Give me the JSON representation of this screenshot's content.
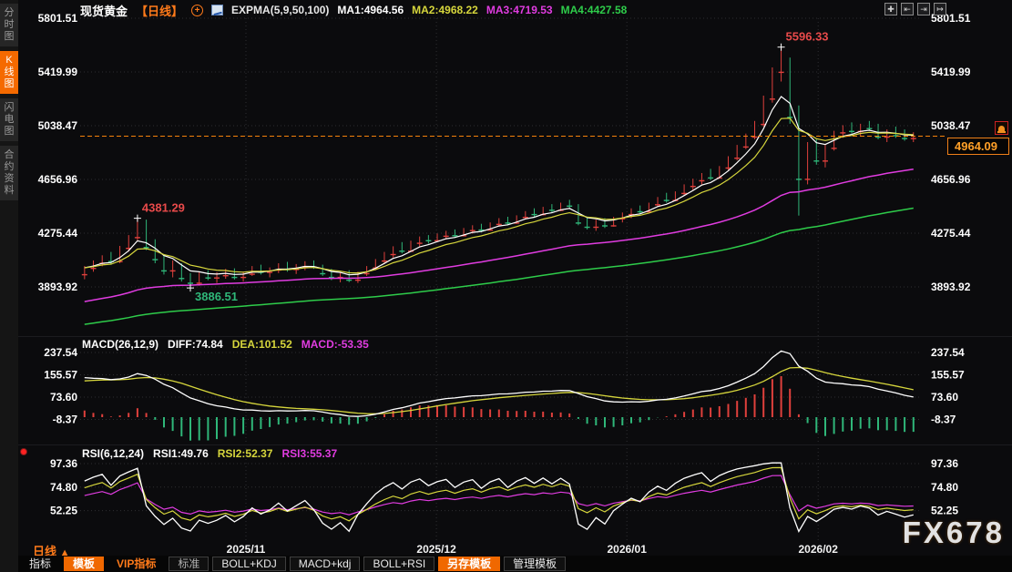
{
  "header": {
    "symbol": "现货黄金",
    "period_tag": "【日线】",
    "indicator": "EXPMA(5,9,50,100)",
    "ma_values": [
      {
        "label": "MA1:4964.56",
        "color": "#ffffff"
      },
      {
        "label": "MA2:4968.22",
        "color": "#d6d63c"
      },
      {
        "label": "MA3:4719.53",
        "color": "#e03ce0"
      },
      {
        "label": "MA4:4427.58",
        "color": "#2ecc4a"
      }
    ],
    "toolbar_icons": [
      "crosshair-icon",
      "compress-candles-icon",
      "expand-candles-icon",
      "shift-right-icon"
    ]
  },
  "sidebar": {
    "tabs": [
      {
        "name": "tab-time-chart",
        "label": "分时图",
        "active": false
      },
      {
        "name": "tab-kline-chart",
        "label": "K线图",
        "active": true
      },
      {
        "name": "tab-lightning-chart",
        "label": "闪电图",
        "active": false
      },
      {
        "name": "tab-contract-info",
        "label": "合约资料",
        "active": false
      }
    ]
  },
  "macd_header": {
    "title": "MACD(26,12,9)",
    "diff": "DIFF:74.84",
    "dea": "DEA:101.52",
    "macd": "MACD:-53.35"
  },
  "rsi_header": {
    "title": "RSI(6,12,24)",
    "rsi1": "RSI1:49.76",
    "rsi2": "RSI2:52.37",
    "rsi3": "RSI3:55.37"
  },
  "price_box": {
    "value": "4964.09"
  },
  "period_row": {
    "period": "日线",
    "arrow": "▲"
  },
  "bottom_toolbar": [
    {
      "name": "indicator-button",
      "label": "指标",
      "style": "bare"
    },
    {
      "name": "template-button",
      "label": "模板",
      "style": "orange-bg"
    },
    {
      "name": "vip-indicator-button",
      "label": "VIP指标",
      "style": "orange-text"
    },
    {
      "name": "standard-button",
      "label": "标准",
      "style": "dim"
    },
    {
      "name": "boll-kdj-button",
      "label": "BOLL+KDJ",
      "style": "plain"
    },
    {
      "name": "macd-kdj-button",
      "label": "MACD+kdj",
      "style": "plain"
    },
    {
      "name": "boll-rsi-button",
      "label": "BOLL+RSI",
      "style": "plain"
    },
    {
      "name": "save-template-button",
      "label": "另存模板",
      "style": "orange-bg"
    },
    {
      "name": "manage-template-button",
      "label": "管理模板",
      "style": "plain"
    }
  ],
  "watermark": "FX678",
  "chart_data": {
    "type": "candlestick",
    "title": "现货黄金 日线",
    "price_axis_ticks": [
      5801.51,
      5419.99,
      5038.47,
      4656.96,
      4275.44,
      3893.92
    ],
    "macd_axis_ticks": [
      237.54,
      155.57,
      73.6,
      -8.37
    ],
    "rsi_axis_ticks": [
      97.36,
      74.8,
      52.25
    ],
    "x_axis_labels": [
      {
        "label": "2025/11",
        "bar": 18.8
      },
      {
        "label": "2025/12",
        "bar": 40.4
      },
      {
        "label": "2026/01",
        "bar": 62.0
      },
      {
        "label": "2026/02",
        "bar": 83.7
      }
    ],
    "current_price": 4964.09,
    "annotations": [
      {
        "text": "4381.29",
        "color": "#e84a4a",
        "bar": 6,
        "price": 4381.29,
        "type": "high"
      },
      {
        "text": "3886.51",
        "color": "#2fb779",
        "bar": 12,
        "price": 3886.51,
        "type": "low"
      },
      {
        "text": "5596.33",
        "color": "#e84a4a",
        "bar": 79,
        "price": 5596.33,
        "type": "high"
      }
    ],
    "expma": {
      "periods": [
        5,
        9,
        50,
        100
      ],
      "seeds": [
        null,
        null,
        3780,
        3620
      ],
      "colors": [
        "#ffffff",
        "#d6d63c",
        "#e03ce0",
        "#2ecc4a"
      ]
    },
    "macd": {
      "fast": 12,
      "slow": 26,
      "signal": 9,
      "seed_fast": 3950,
      "seed_slow": 3800,
      "seed_signal": 130,
      "diff_color": "#ffffff",
      "dea_color": "#d6d63c"
    },
    "rsi": {
      "periods": [
        6,
        12,
        24
      ],
      "seed_gain_loss": [
        [
          25,
          6
        ],
        [
          20,
          7
        ],
        [
          16,
          8
        ]
      ],
      "colors": [
        "#ffffff",
        "#d6d63c",
        "#e03ce0"
      ]
    },
    "colors": {
      "up": "#e0403c",
      "down": "#2fb779",
      "grid": "#2e2e31",
      "price_line": "#f5820a"
    },
    "candles": [
      [
        3985,
        4042,
        3948,
        4030
      ],
      [
        4030,
        4082,
        4002,
        4066
      ],
      [
        4066,
        4118,
        4040,
        4100
      ],
      [
        4100,
        4142,
        4052,
        4078
      ],
      [
        4078,
        4185,
        4062,
        4172
      ],
      [
        4172,
        4262,
        4145,
        4248
      ],
      [
        4248,
        4381.29,
        4225,
        4362
      ],
      [
        4358,
        4372,
        4155,
        4178
      ],
      [
        4178,
        4232,
        4062,
        4092
      ],
      [
        4092,
        4122,
        3982,
        4012
      ],
      [
        4012,
        4082,
        3962,
        4055
      ],
      [
        4055,
        4062,
        3932,
        3958
      ],
      [
        3958,
        3992,
        3886.51,
        3924
      ],
      [
        3924,
        4002,
        3902,
        3988
      ],
      [
        3988,
        4012,
        3942,
        3962
      ],
      [
        3962,
        3998,
        3922,
        3978
      ],
      [
        3978,
        4022,
        3952,
        4002
      ],
      [
        4002,
        4026,
        3946,
        3966
      ],
      [
        3966,
        4002,
        3932,
        3988
      ],
      [
        3988,
        4042,
        3972,
        4028
      ],
      [
        4028,
        4052,
        3982,
        4002
      ],
      [
        4002,
        4032,
        3962,
        4018
      ],
      [
        4018,
        4062,
        3992,
        4048
      ],
      [
        4048,
        4072,
        4002,
        4022
      ],
      [
        4022,
        4056,
        3986,
        4042
      ],
      [
        4042,
        4076,
        4012,
        4062
      ],
      [
        4062,
        4082,
        4022,
        4038
      ],
      [
        4038,
        4052,
        3972,
        3992
      ],
      [
        3992,
        4022,
        3942,
        3966
      ],
      [
        3966,
        3996,
        3926,
        3982
      ],
      [
        3982,
        4012,
        3928,
        3946
      ],
      [
        3946,
        4002,
        3922,
        3992
      ],
      [
        3992,
        4042,
        3972,
        4032
      ],
      [
        4032,
        4092,
        4012,
        4082
      ],
      [
        4082,
        4142,
        4062,
        4128
      ],
      [
        4128,
        4182,
        4102,
        4168
      ],
      [
        4168,
        4212,
        4132,
        4152
      ],
      [
        4152,
        4222,
        4142,
        4208
      ],
      [
        4208,
        4252,
        4182,
        4242
      ],
      [
        4242,
        4262,
        4202,
        4226
      ],
      [
        4226,
        4272,
        4212,
        4258
      ],
      [
        4258,
        4292,
        4232,
        4278
      ],
      [
        4278,
        4302,
        4242,
        4262
      ],
      [
        4262,
        4312,
        4252,
        4298
      ],
      [
        4298,
        4332,
        4272,
        4318
      ],
      [
        4318,
        4342,
        4282,
        4302
      ],
      [
        4302,
        4352,
        4292,
        4342
      ],
      [
        4342,
        4382,
        4322,
        4368
      ],
      [
        4368,
        4392,
        4332,
        4352
      ],
      [
        4352,
        4402,
        4342,
        4392
      ],
      [
        4392,
        4432,
        4372,
        4422
      ],
      [
        4422,
        4452,
        4392,
        4412
      ],
      [
        4412,
        4462,
        4402,
        4452
      ],
      [
        4452,
        4482,
        4422,
        4442
      ],
      [
        4442,
        4492,
        4432,
        4482
      ],
      [
        4482,
        4512,
        4452,
        4472
      ],
      [
        4472,
        4482,
        4332,
        4352
      ],
      [
        4352,
        4392,
        4302,
        4322
      ],
      [
        4322,
        4372,
        4292,
        4362
      ],
      [
        4362,
        4382,
        4312,
        4332
      ],
      [
        4332,
        4392,
        4322,
        4382
      ],
      [
        4382,
        4422,
        4352,
        4412
      ],
      [
        4412,
        4452,
        4382,
        4442
      ],
      [
        4442,
        4472,
        4412,
        4432
      ],
      [
        4432,
        4492,
        4422,
        4482
      ],
      [
        4482,
        4532,
        4462,
        4522
      ],
      [
        4522,
        4562,
        4492,
        4512
      ],
      [
        4512,
        4572,
        4502,
        4562
      ],
      [
        4562,
        4622,
        4542,
        4612
      ],
      [
        4612,
        4662,
        4582,
        4652
      ],
      [
        4652,
        4702,
        4622,
        4692
      ],
      [
        4692,
        4732,
        4652,
        4672
      ],
      [
        4672,
        4752,
        4662,
        4742
      ],
      [
        4742,
        4822,
        4722,
        4812
      ],
      [
        4812,
        4902,
        4792,
        4892
      ],
      [
        4892,
        4982,
        4872,
        4962
      ],
      [
        4962,
        5072,
        4942,
        5052
      ],
      [
        5052,
        5252,
        5032,
        5232
      ],
      [
        5232,
        5452,
        5202,
        5422
      ],
      [
        5422,
        5596.33,
        5352,
        5432
      ],
      [
        5432,
        5522,
        5052,
        5102
      ],
      [
        5102,
        5182,
        4400,
        4662
      ],
      [
        4662,
        4922,
        4622,
        4902
      ],
      [
        4902,
        4942,
        4762,
        4792
      ],
      [
        4792,
        4902,
        4742,
        4882
      ],
      [
        4882,
        5002,
        4862,
        4992
      ],
      [
        4992,
        5042,
        4952,
        5022
      ],
      [
        5022,
        5062,
        4982,
        5002
      ],
      [
        5002,
        5052,
        4962,
        5042
      ],
      [
        5042,
        5072,
        5002,
        5022
      ],
      [
        5022,
        5052,
        4942,
        4962
      ],
      [
        4962,
        5012,
        4922,
        4992
      ],
      [
        4992,
        5032,
        4952,
        4972
      ],
      [
        4972,
        5012,
        4932,
        4952
      ],
      [
        4952,
        4992,
        4922,
        4964.09
      ]
    ]
  }
}
